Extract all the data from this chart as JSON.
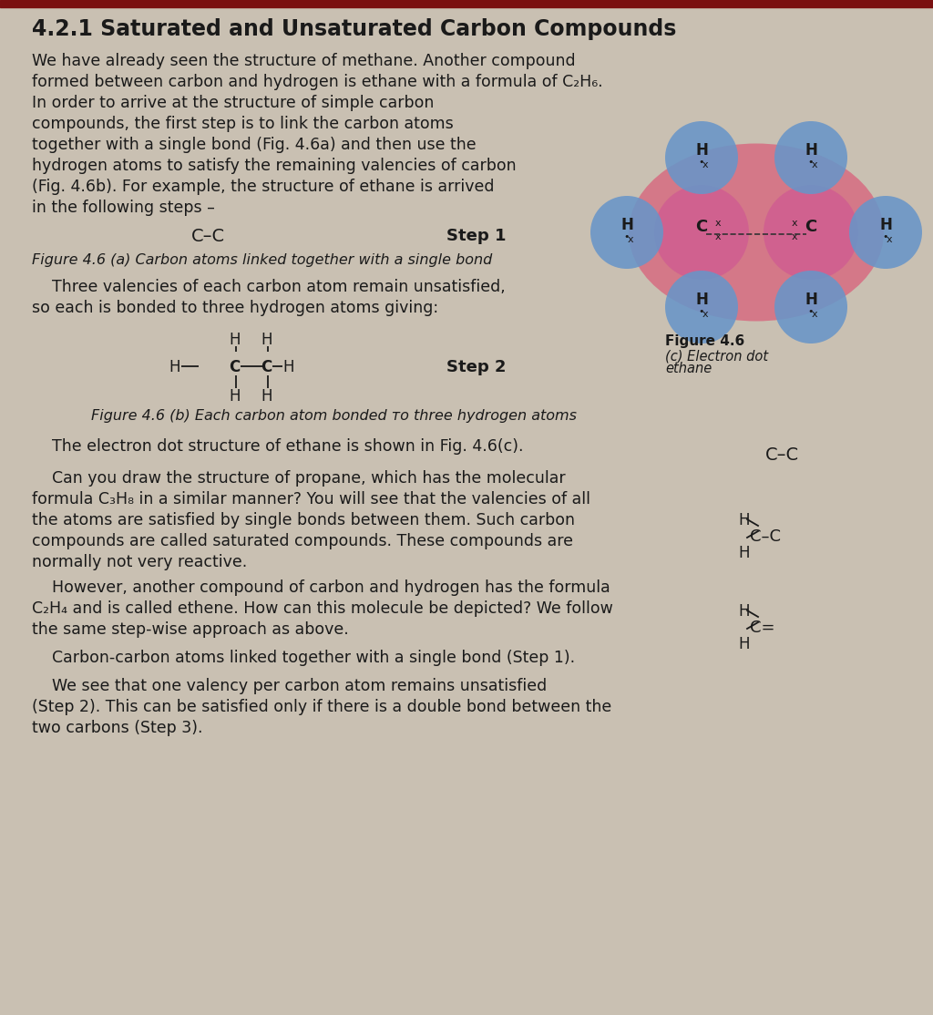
{
  "title": "4.2.1 Saturated and Unsaturated Carbon Compounds",
  "bg_color": "#c9c0b2",
  "text_color": "#1a1a1a",
  "top_bar_color": "#7a1010",
  "lines_p1": [
    "We have already seen the structure of methane. Another compound",
    "formed between carbon and hydrogen is ethane with a formula of C₂H₆.",
    "In order to arrive at the structure of simple carbon",
    "compounds, the first step is to link the carbon atoms",
    "together with a single bond (Fig. 4.6a) and then use the",
    "hydrogen atoms to satisfy the remaining valencies of carbon",
    "(Fig. 4.6b). For example, the structure of ethane is arrived",
    "in the following steps –"
  ],
  "step1_formula": "C–C",
  "step1_label": "Step 1",
  "fig46a_caption": "Figure 4.6 (a) Carbon atoms linked together with a single bond",
  "lines_p2": [
    "    Three valencies of each carbon atom remain unsatisfied,",
    "so each is bonded to three hydrogen atoms giving:"
  ],
  "step2_label": "Step 2",
  "fig46b_caption": "Figure 4.6 (b) Each carbon atom bonded то three hydrogen atoms",
  "para3": "    The electron dot structure of ethane is shown in Fig. 4.6(c).",
  "lines_p4": [
    "    Can you draw the structure of propane, which has the molecular",
    "formula C₃H₈ in a similar manner? You will see that the valencies of all",
    "the atoms are satisfied by single bonds between them. Such carbon",
    "compounds are called saturated compounds. These compounds are",
    "normally not very reactive."
  ],
  "lines_p5": [
    "    However, another compound of carbon and hydrogen has the formula",
    "C₂H₄ and is called ethene. How can this molecule be depicted? We follow",
    "the same step-wise approach as above."
  ],
  "para6": "    Carbon-carbon atoms linked together with a single bond (Step 1).",
  "lines_p7": [
    "    We see that one valency per carbon atom remains unsatisfied",
    "(Step 2). This can be satisfied only if there is a double bond between the",
    "two carbons (Step 3)."
  ],
  "fig46c_line1": "Figure 4.6",
  "fig46c_line2": "(c) Electron dot",
  "fig46c_line3": "ethane"
}
